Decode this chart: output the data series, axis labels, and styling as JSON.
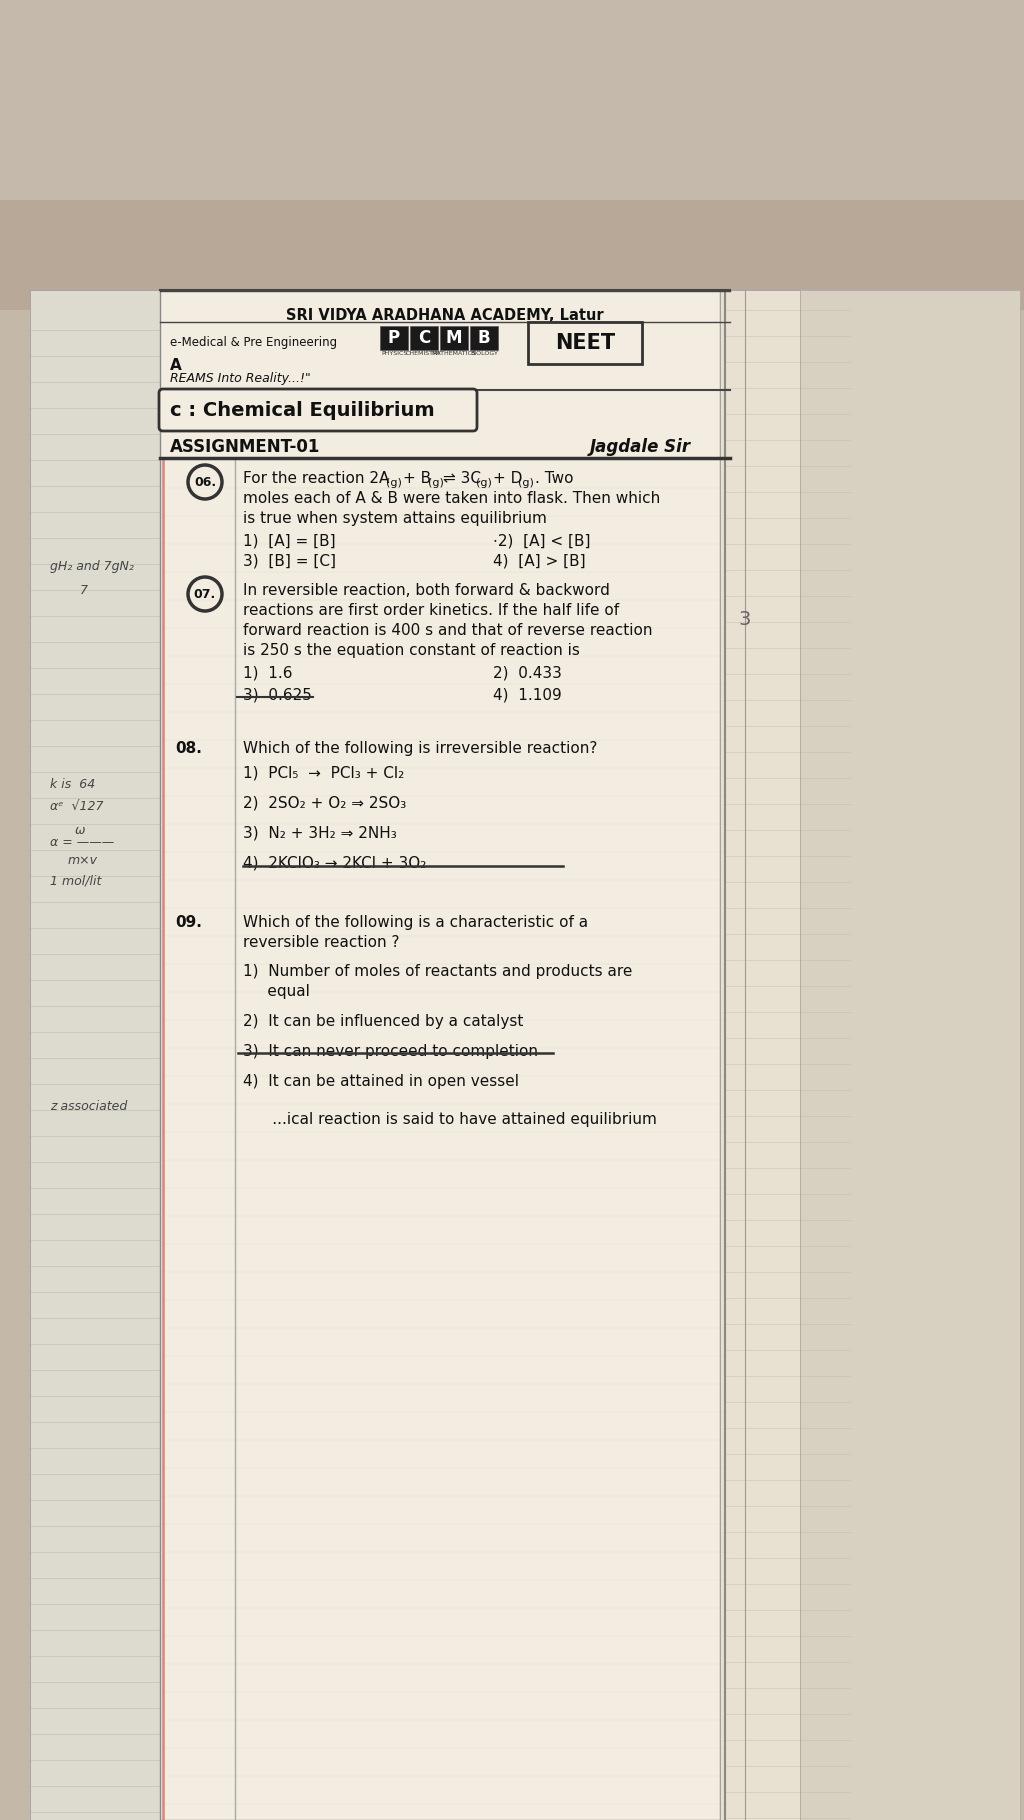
{
  "bg_top_color": "#c8b89a",
  "bg_paper_color": "#e8e4da",
  "paper_main_color": "#f0ece0",
  "paper_left_color": "#e4dfd0",
  "header_institution": "SRI VIDYA ARADHANA ACADEMY, Latur",
  "header_left": "e-Medical & Pre Engineering",
  "header_neet": "NEET",
  "header_tagline": "REAMS Into Reality...!\"",
  "subject_label": "c : Chemical Equilibrium",
  "assignment": "ASSIGNMENT-01",
  "teacher": "Jagdale Sir",
  "q06_line1a": "For the reaction 2A",
  "q06_line1b": "(g)",
  "q06_line1c": "+ B",
  "q06_line1d": "(g)",
  "q06_line1e": "⇌ 3C",
  "q06_line1f": "(g)",
  "q06_line1g": "+ D",
  "q06_line1h": "(g)",
  "q06_line1i": ". Two",
  "q06_line2": "moles each of A & B were taken into flask. Then which",
  "q06_line3": "is true when system attains equilibrium",
  "q06_opt1": "1)  [A] = [B]",
  "q06_opt2": "⋅2)  [A] < [B]",
  "q06_opt3": "3)  [B] = [C]",
  "q06_opt4": "4)  [A] > [B]",
  "q07_line1": "In reversible reaction, both forward & backword",
  "q07_line2": "reactions are first order kinetics. If the half life of",
  "q07_line3": "forward reaction is 400 s and that of reverse reaction",
  "q07_line4": "is 250 s the equation constant of reaction is",
  "q07_opt1": "1)  1.6",
  "q07_opt2": "2)  0.433",
  "q07_opt3": "3)  0.625",
  "q07_opt4": "4)  1.109",
  "q08_text": "Which of the following is irreversible reaction?",
  "q08_opt1": "1)  PCl₅  →  PCl₃ + Cl₂",
  "q08_opt2": "2)  2SO₂ + O₂ ⇒ 2SO₃",
  "q08_opt3": "3)  N₂ + 3H₂ ⇒ 2NH₃",
  "q08_opt4": "4)  2KClO₃ → 2KCl + 3O₂",
  "q09_text1": "Which of the following is a characteristic of a",
  "q09_text2": "reversible reaction ?",
  "q09_opt1a": "1)  Number of moles of reactants and products are",
  "q09_opt1b": "     equal",
  "q09_opt2": "2)  It can be influenced by a catalyst",
  "q09_opt3": "3)  It can never proceed to completion",
  "q09_opt4": "4)  It can be attained in open vessel",
  "q09_footer": "      ...ical reaction is said to have attained equilibrium",
  "left_note1": "gH₂ and 7gN₂",
  "left_note2": "7",
  "left_note3": "k is  64",
  "left_note4": "αᵉ  √127",
  "left_note5": "ω",
  "left_note6": "α = ———",
  "left_note7": "m×v",
  "left_note8": "1 mol/lit",
  "left_note9": "z associated",
  "right_num": "3"
}
